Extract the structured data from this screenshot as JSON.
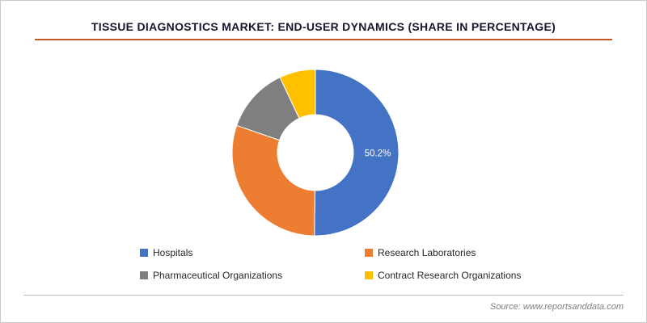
{
  "header": {
    "title": "TISSUE DIAGNOSTICS MARKET: END-USER DYNAMICS (SHARE IN PERCENTAGE)"
  },
  "chart_data": {
    "type": "pie",
    "subtype": "donut",
    "title": "TISSUE DIAGNOSTICS MARKET: END-USER DYNAMICS (SHARE IN PERCENTAGE)",
    "categories": [
      "Hospitals",
      "Research Laboratories",
      "Pharmaceutical Organizations",
      "Contract Research Organizations"
    ],
    "values": [
      50.2,
      30.1,
      12.7,
      7.0
    ],
    "colors": [
      "#4472C4",
      "#ED7D31",
      "#7F7F7F",
      "#FFC000"
    ],
    "data_labels": [
      "50.2%",
      "",
      "",
      ""
    ],
    "data_label_color": "#FFFFFF",
    "legend_position": "bottom",
    "donut_hole_ratio": 0.46,
    "start_angle_deg": 0,
    "direction": "clockwise"
  },
  "style": {
    "title_color": "#16162E",
    "title_divider_color": "#C5581F",
    "footer_divider_color": "#BFBFBF",
    "panel_border_color": "#C9C9C9",
    "legend_text_color": "#262626",
    "source_text_color": "#7F7F7F"
  },
  "footer": {
    "source": "Source: www.reportsanddata.com"
  }
}
